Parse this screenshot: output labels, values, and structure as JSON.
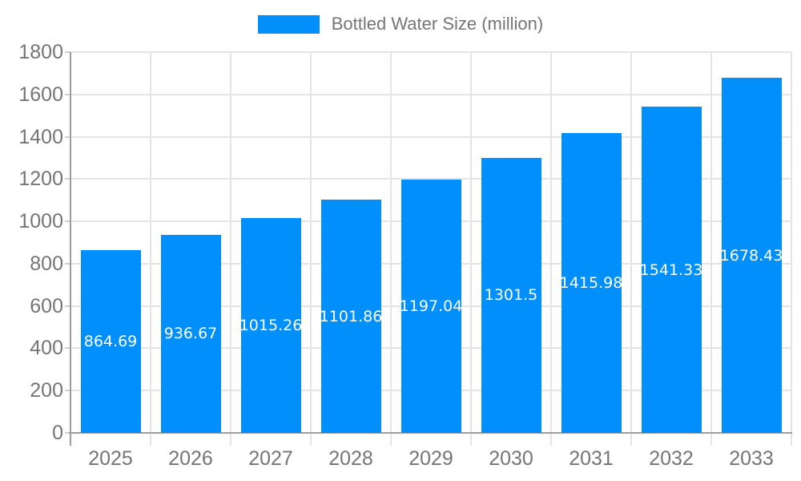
{
  "legend": {
    "label": "Bottled Water Size (million)"
  },
  "chart_data": {
    "type": "bar",
    "title": "Bottled Water Size (million)",
    "legend_position": "top",
    "grid": true,
    "categories": [
      "2025",
      "2026",
      "2027",
      "2028",
      "2029",
      "2030",
      "2031",
      "2032",
      "2033"
    ],
    "series": [
      {
        "name": "Bottled Water Size (million)",
        "values": [
          864.69,
          936.67,
          1015.26,
          1101.86,
          1197.04,
          1301.5,
          1415.98,
          1541.33,
          1678.43
        ],
        "labels": [
          "864.69",
          "936.67",
          "1015.26",
          "1101.86",
          "1197.04",
          "1301.5",
          "1415.98",
          "1541.33",
          "1678.43"
        ]
      }
    ],
    "xlabel": "",
    "ylabel": "",
    "ylim": [
      0,
      1800
    ],
    "ytick_step": 200,
    "ytick_labels": [
      "0",
      "200",
      "400",
      "600",
      "800",
      "1000",
      "1200",
      "1400",
      "1600",
      "1800"
    ],
    "colors": {
      "bar": "#008FFB",
      "bar_label": "#FFFFFF",
      "axis_text": "#757575",
      "gridline": "#E4E4E4",
      "tick": "#CFCFCF",
      "axis_line": "#9E9E9E"
    }
  }
}
